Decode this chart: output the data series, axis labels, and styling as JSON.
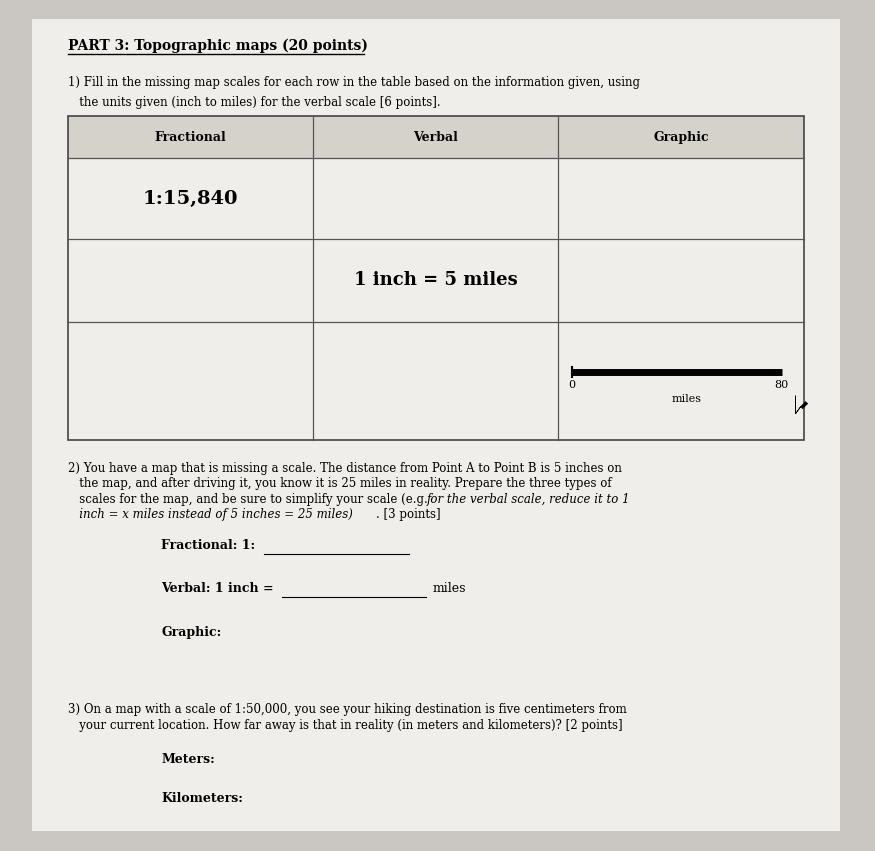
{
  "bg_color": "#cac7c2",
  "paper_color": "#f0eeeb",
  "title": "PART 3: Topographic maps (20 points)",
  "q1_line1": "1) Fill in the missing map scales for each row in the table based on the information given, using",
  "q1_line2": "   the units given (inch to miles) for the verbal scale [6 points].",
  "table_headers": [
    "Fractional",
    "Verbal",
    "Graphic"
  ],
  "row1_fractional": "1:15,840",
  "row2_verbal": "1 inch = 5 miles",
  "scale_bar_label_left": "0",
  "scale_bar_label_right": "80",
  "scale_bar_unit": "miles",
  "q2_line1": "2) You have a map that is missing a scale. The distance from Point A to Point B is 5 inches on",
  "q2_line2": "   the map, and after driving it, you know it is 25 miles in reality. Prepare the three types of",
  "q2_line3_normal": "   scales for the map, and be sure to simplify your scale (e.g. ",
  "q2_line3_italic": "for the verbal scale, reduce it to 1",
  "q2_line4_italic": "   inch = x miles instead of 5 inches = 25 miles)",
  "q2_line4_end": ". [3 points]",
  "q2_fractional_label": "Fractional: 1:",
  "q2_verbal_label": "Verbal: 1 inch =",
  "q2_verbal_end": "miles",
  "q2_graphic_label": "Graphic:",
  "q3_line1": "3) On a map with a scale of 1:50,000, you see your hiking destination is five centimeters from",
  "q3_line2": "   your current location. How far away is that in reality (in meters and kilometers)? [2 points]",
  "q3_meters_label": "Meters:",
  "q3_kilometers_label": "Kilometers:"
}
